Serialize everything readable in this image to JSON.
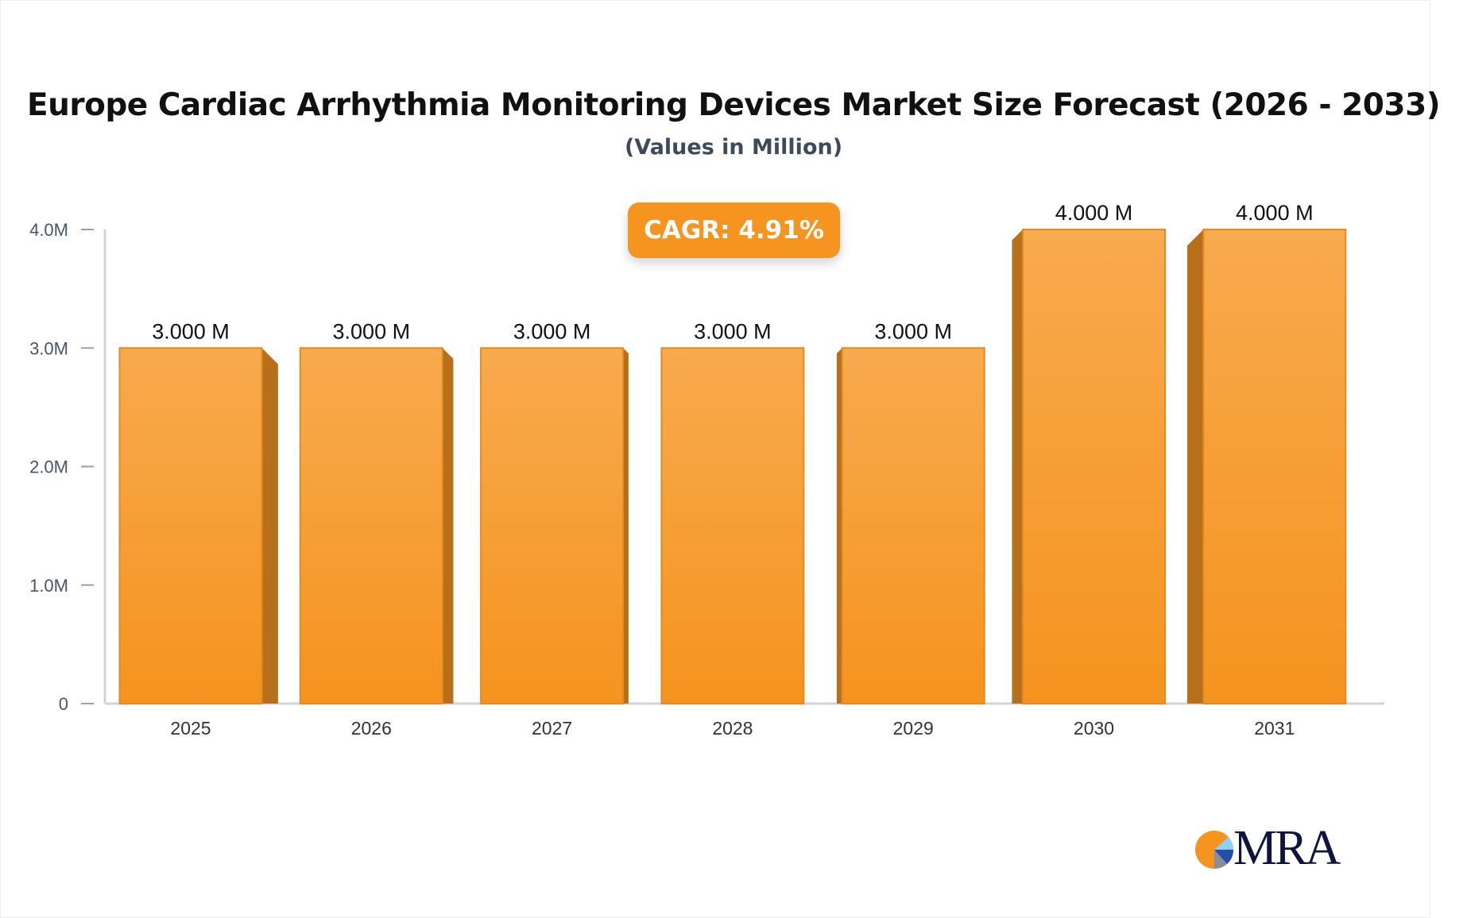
{
  "chart_data": {
    "type": "bar",
    "title": "Europe Cardiac Arrhythmia Monitoring Devices Market Size Forecast (2026 - 2033)",
    "subtitle": "(Values in Million)",
    "categories": [
      "2025",
      "2026",
      "2027",
      "2028",
      "2029",
      "2030",
      "2031"
    ],
    "values": [
      3.0,
      3.0,
      3.0,
      3.0,
      3.0,
      4.0,
      4.0
    ],
    "data_labels": [
      "3.000 M",
      "3.000 M",
      "3.000 M",
      "3.000 M",
      "3.000 M",
      "4.000 M",
      "4.000 M"
    ],
    "yticks": [
      0,
      1,
      2,
      3,
      4
    ],
    "ytick_labels": [
      "0",
      "1.0M",
      "2.0M",
      "3.0M",
      "4.0M"
    ],
    "ylim": [
      0,
      4
    ],
    "xlabel": "",
    "ylabel": "",
    "grid": false,
    "legend": "none",
    "annotation": "CAGR: 4.91%",
    "colors": {
      "bar_top": "#f8aa4e",
      "bar_bottom": "#f5931e",
      "bar_side": "#b86f1a",
      "bar_edge": "#e38a22",
      "badge": "#f5941f",
      "axis": "#d0d3da"
    }
  },
  "logo": {
    "text": "MRA"
  }
}
